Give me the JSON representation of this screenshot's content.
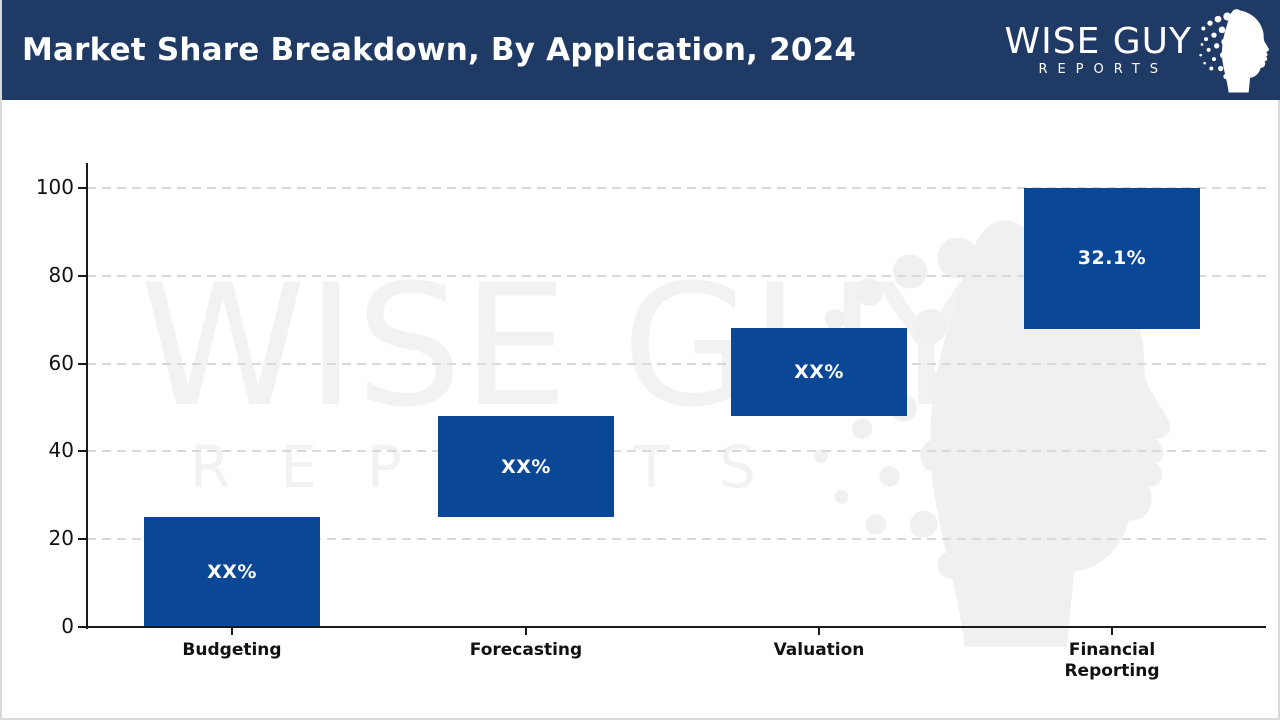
{
  "header": {
    "title": "Market Share Breakdown, By Application, 2024",
    "logo": {
      "line1": "WISE GUY",
      "line2": "REPORTS"
    }
  },
  "watermark": {
    "line1": "WISE GUY",
    "line2": "REPORTS"
  },
  "chart_data": {
    "type": "bar",
    "subtype": "floating-waterfall",
    "title": "Market Share Breakdown, By Application, 2024",
    "categories": [
      "Budgeting",
      "Forecasting",
      "Valuation",
      "Financial Reporting"
    ],
    "segments": [
      {
        "category": "Budgeting",
        "start": 0,
        "end": 25,
        "label": "XX%"
      },
      {
        "category": "Forecasting",
        "start": 25,
        "end": 48,
        "label": "XX%"
      },
      {
        "category": "Valuation",
        "start": 48,
        "end": 68,
        "label": "XX%"
      },
      {
        "category": "Financial Reporting",
        "start": 67.9,
        "end": 100,
        "label": "32.1%"
      }
    ],
    "ylim": [
      0,
      100
    ],
    "yticks": [
      0,
      20,
      40,
      60,
      80,
      100
    ],
    "xlabel": "",
    "ylabel": "",
    "grid": "horizontal-dashed",
    "legend": "none",
    "bar_color": "#0a4795"
  },
  "colors": {
    "header_bg": "#203a66",
    "bar": "#0a4795",
    "grid": "#d9d9d9",
    "axis": "#1a1a1a",
    "watermark": "#f2f2f4",
    "page_bg": "#ffffff"
  }
}
